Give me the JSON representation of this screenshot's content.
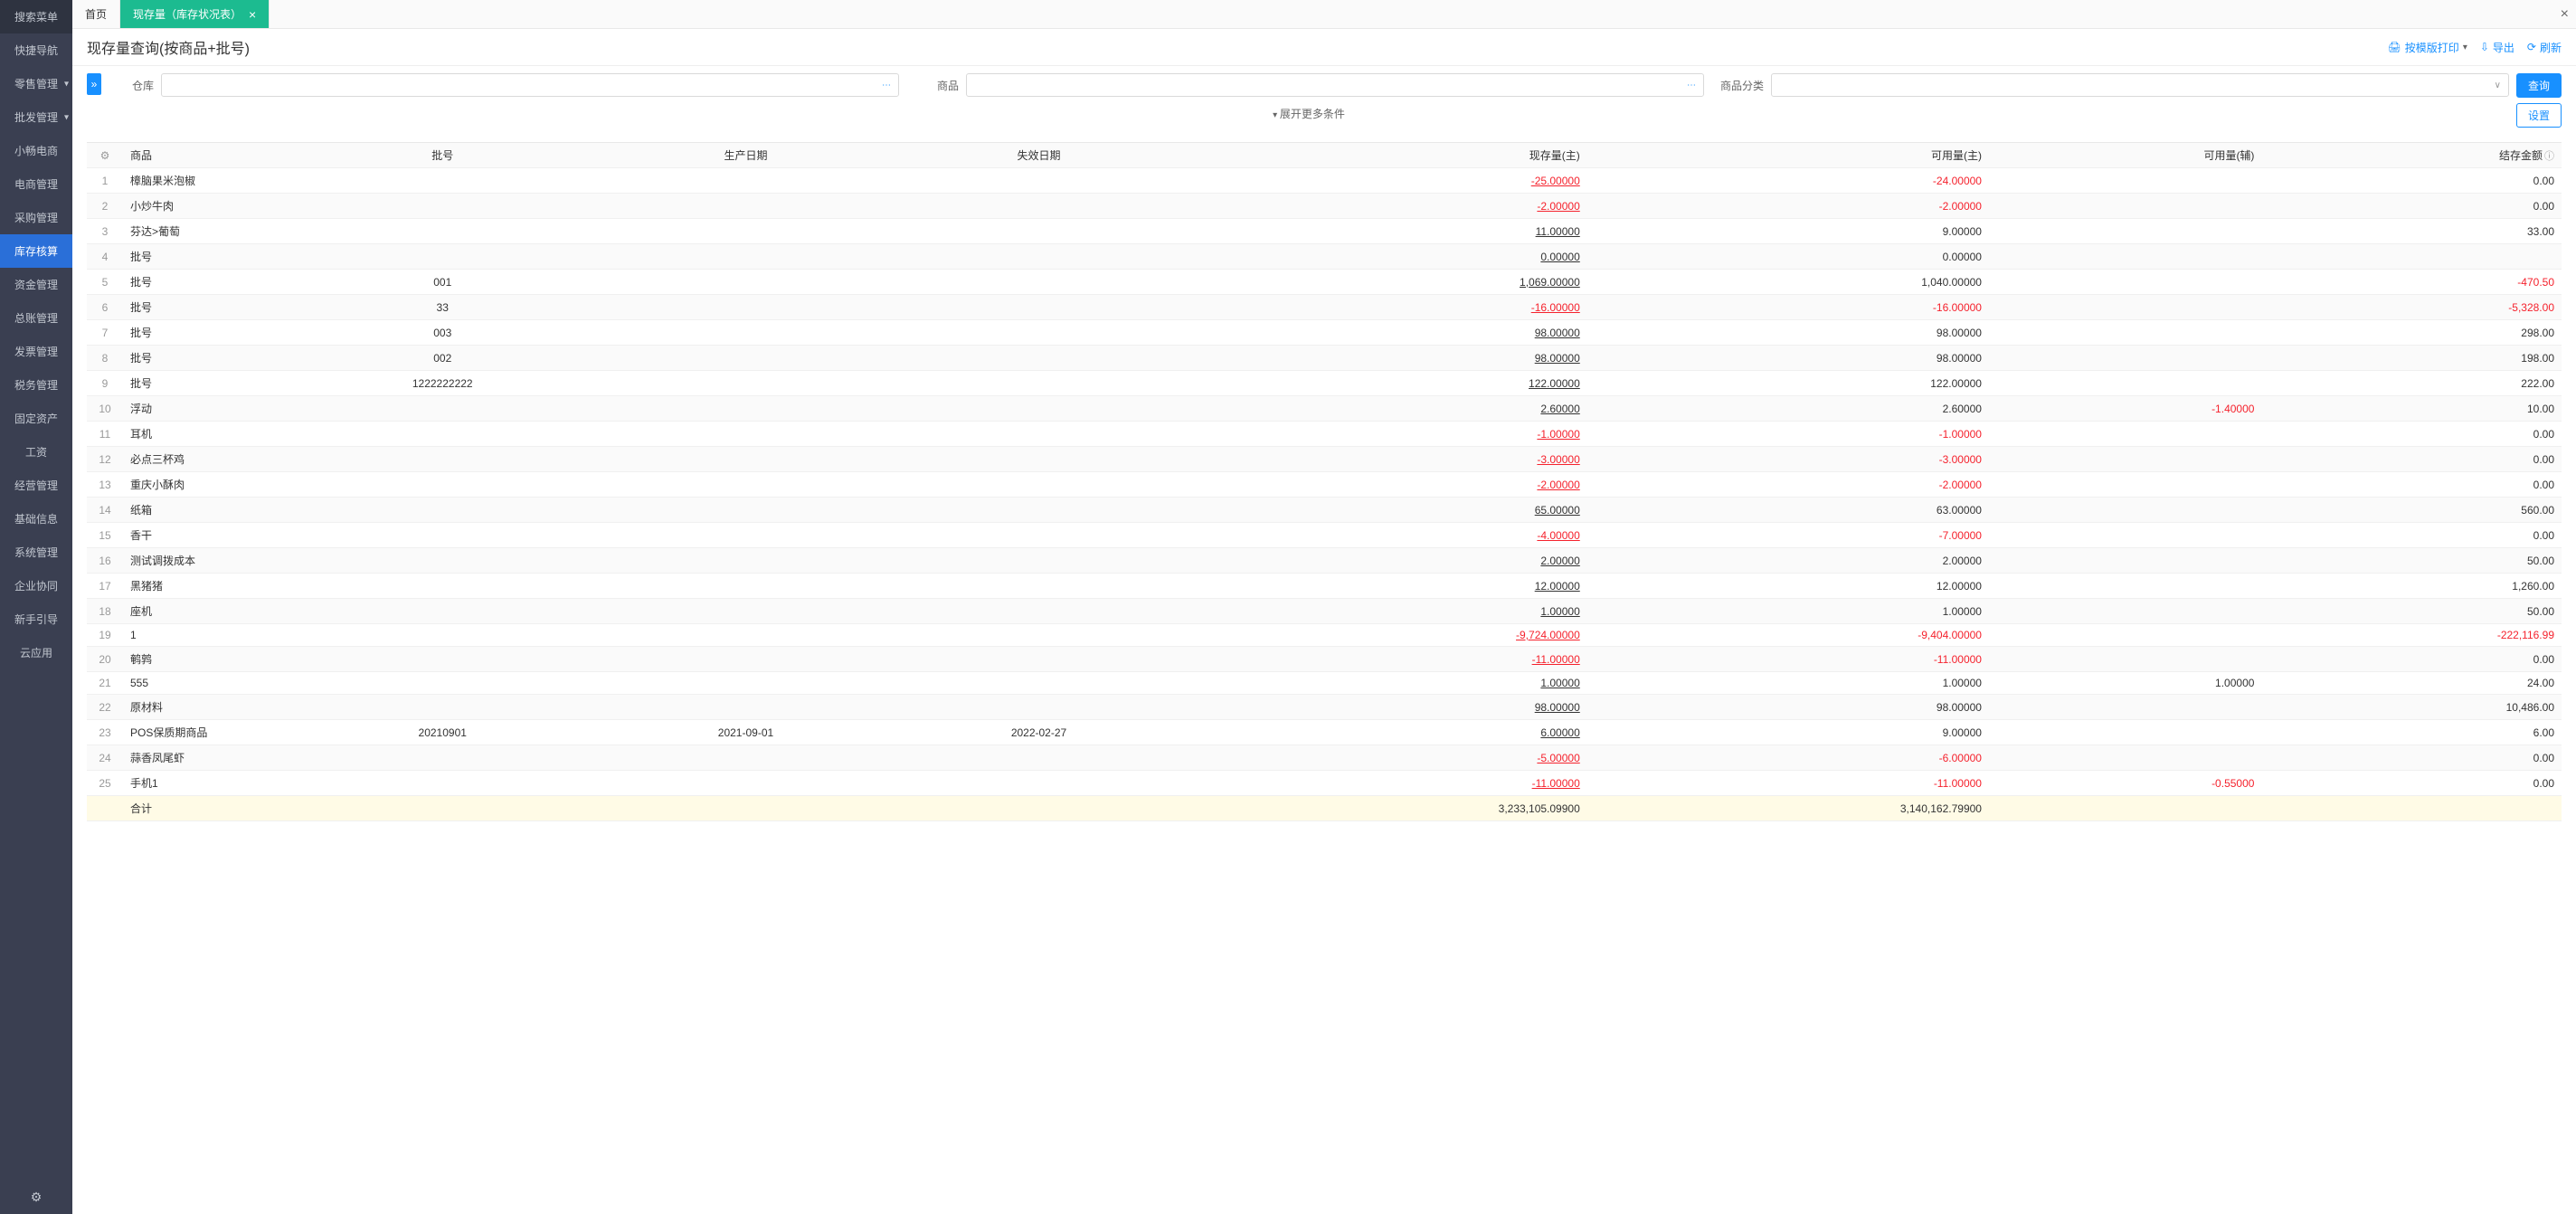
{
  "sidebar": {
    "items": [
      {
        "label": "搜索菜单",
        "arrow": false
      },
      {
        "label": "快捷导航",
        "arrow": false
      },
      {
        "label": "零售管理",
        "arrow": true,
        "expanded": true
      },
      {
        "label": "批发管理",
        "arrow": true,
        "expanded": true
      },
      {
        "label": "小畅电商",
        "arrow": false
      },
      {
        "label": "电商管理",
        "arrow": false
      },
      {
        "label": "采购管理",
        "arrow": false
      },
      {
        "label": "库存核算",
        "arrow": false,
        "active": true
      },
      {
        "label": "资金管理",
        "arrow": false
      },
      {
        "label": "总账管理",
        "arrow": false
      },
      {
        "label": "发票管理",
        "arrow": false
      },
      {
        "label": "税务管理",
        "arrow": false
      },
      {
        "label": "固定资产",
        "arrow": false
      },
      {
        "label": "工资",
        "arrow": false
      },
      {
        "label": "经营管理",
        "arrow": false
      },
      {
        "label": "基础信息",
        "arrow": false
      },
      {
        "label": "系统管理",
        "arrow": false
      },
      {
        "label": "企业协同",
        "arrow": false
      },
      {
        "label": "新手引导",
        "arrow": false
      },
      {
        "label": "云应用",
        "arrow": false
      }
    ]
  },
  "tabs": [
    {
      "label": "首页",
      "closable": false,
      "active": false
    },
    {
      "label": "现存量（库存状况表）",
      "closable": true,
      "active": true
    }
  ],
  "page": {
    "title": "现存量查询(按商品+批号)",
    "actions": {
      "print": "按模版打印",
      "export": "导出",
      "refresh": "刷新"
    }
  },
  "filters": {
    "warehouse_label": "仓库",
    "product_label": "商品",
    "category_label": "商品分类",
    "query_btn": "查询",
    "settings_btn": "设置",
    "expand": "展开更多条件"
  },
  "table": {
    "columns": [
      "#",
      "商品",
      "批号",
      "生产日期",
      "失效日期",
      "现存量(主)",
      "可用量(主)",
      "可用量(辅)",
      "结存金额"
    ],
    "rows": [
      {
        "idx": 1,
        "product": "樟脑果米泡椒",
        "batch": "",
        "prod": "",
        "exp": "",
        "stock": "-25.00000",
        "stock_neg": true,
        "avail": "-24.00000",
        "avail_neg": true,
        "aux": "",
        "amount": "0.00"
      },
      {
        "idx": 2,
        "product": "小炒牛肉",
        "batch": "",
        "prod": "",
        "exp": "",
        "stock": "-2.00000",
        "stock_neg": true,
        "avail": "-2.00000",
        "avail_neg": true,
        "aux": "",
        "amount": "0.00"
      },
      {
        "idx": 3,
        "product": "芬达>葡萄",
        "batch": "",
        "prod": "",
        "exp": "",
        "stock": "11.00000",
        "stock_neg": false,
        "avail": "9.00000",
        "avail_neg": false,
        "aux": "",
        "amount": "33.00"
      },
      {
        "idx": 4,
        "product": "批号",
        "batch": "",
        "prod": "",
        "exp": "",
        "stock": "0.00000",
        "stock_neg": false,
        "avail": "0.00000",
        "avail_neg": false,
        "aux": "",
        "amount": ""
      },
      {
        "idx": 5,
        "product": "批号",
        "batch": "001",
        "prod": "",
        "exp": "",
        "stock": "1,069.00000",
        "stock_neg": false,
        "avail": "1,040.00000",
        "avail_neg": false,
        "aux": "",
        "amount": "-470.50",
        "amount_neg": true
      },
      {
        "idx": 6,
        "product": "批号",
        "batch": "33",
        "prod": "",
        "exp": "",
        "stock": "-16.00000",
        "stock_neg": true,
        "avail": "-16.00000",
        "avail_neg": true,
        "aux": "",
        "amount": "-5,328.00",
        "amount_neg": true
      },
      {
        "idx": 7,
        "product": "批号",
        "batch": "003",
        "prod": "",
        "exp": "",
        "stock": "98.00000",
        "stock_neg": false,
        "avail": "98.00000",
        "avail_neg": false,
        "aux": "",
        "amount": "298.00"
      },
      {
        "idx": 8,
        "product": "批号",
        "batch": "002",
        "prod": "",
        "exp": "",
        "stock": "98.00000",
        "stock_neg": false,
        "avail": "98.00000",
        "avail_neg": false,
        "aux": "",
        "amount": "198.00"
      },
      {
        "idx": 9,
        "product": "批号",
        "batch": "1222222222",
        "prod": "",
        "exp": "",
        "stock": "122.00000",
        "stock_neg": false,
        "avail": "122.00000",
        "avail_neg": false,
        "aux": "",
        "amount": "222.00"
      },
      {
        "idx": 10,
        "product": "浮动",
        "batch": "",
        "prod": "",
        "exp": "",
        "stock": "2.60000",
        "stock_neg": false,
        "avail": "2.60000",
        "avail_neg": false,
        "aux": "-1.40000",
        "aux_neg": true,
        "amount": "10.00"
      },
      {
        "idx": 11,
        "product": "耳机",
        "batch": "",
        "prod": "",
        "exp": "",
        "stock": "-1.00000",
        "stock_neg": true,
        "avail": "-1.00000",
        "avail_neg": true,
        "aux": "",
        "amount": "0.00"
      },
      {
        "idx": 12,
        "product": "必点三杯鸡",
        "batch": "",
        "prod": "",
        "exp": "",
        "stock": "-3.00000",
        "stock_neg": true,
        "avail": "-3.00000",
        "avail_neg": true,
        "aux": "",
        "amount": "0.00"
      },
      {
        "idx": 13,
        "product": "重庆小酥肉",
        "batch": "",
        "prod": "",
        "exp": "",
        "stock": "-2.00000",
        "stock_neg": true,
        "avail": "-2.00000",
        "avail_neg": true,
        "aux": "",
        "amount": "0.00"
      },
      {
        "idx": 14,
        "product": "纸箱",
        "batch": "",
        "prod": "",
        "exp": "",
        "stock": "65.00000",
        "stock_neg": false,
        "avail": "63.00000",
        "avail_neg": false,
        "aux": "",
        "amount": "560.00"
      },
      {
        "idx": 15,
        "product": "香干",
        "batch": "",
        "prod": "",
        "exp": "",
        "stock": "-4.00000",
        "stock_neg": true,
        "avail": "-7.00000",
        "avail_neg": true,
        "aux": "",
        "amount": "0.00"
      },
      {
        "idx": 16,
        "product": "测试调拨成本",
        "batch": "",
        "prod": "",
        "exp": "",
        "stock": "2.00000",
        "stock_neg": false,
        "avail": "2.00000",
        "avail_neg": false,
        "aux": "",
        "amount": "50.00"
      },
      {
        "idx": 17,
        "product": "黑猪猪",
        "batch": "",
        "prod": "",
        "exp": "",
        "stock": "12.00000",
        "stock_neg": false,
        "avail": "12.00000",
        "avail_neg": false,
        "aux": "",
        "amount": "1,260.00"
      },
      {
        "idx": 18,
        "product": "座机",
        "batch": "",
        "prod": "",
        "exp": "",
        "stock": "1.00000",
        "stock_neg": false,
        "avail": "1.00000",
        "avail_neg": false,
        "aux": "",
        "amount": "50.00"
      },
      {
        "idx": 19,
        "product": "1",
        "batch": "",
        "prod": "",
        "exp": "",
        "stock": "-9,724.00000",
        "stock_neg": true,
        "avail": "-9,404.00000",
        "avail_neg": true,
        "aux": "",
        "amount": "-222,116.99",
        "amount_neg": true
      },
      {
        "idx": 20,
        "product": "鹌鹑",
        "batch": "",
        "prod": "",
        "exp": "",
        "stock": "-11.00000",
        "stock_neg": true,
        "avail": "-11.00000",
        "avail_neg": true,
        "aux": "",
        "amount": "0.00"
      },
      {
        "idx": 21,
        "product": "555",
        "batch": "",
        "prod": "",
        "exp": "",
        "stock": "1.00000",
        "stock_neg": false,
        "avail": "1.00000",
        "avail_neg": false,
        "aux": "1.00000",
        "amount": "24.00"
      },
      {
        "idx": 22,
        "product": "原材料",
        "batch": "",
        "prod": "",
        "exp": "",
        "stock": "98.00000",
        "stock_neg": false,
        "avail": "98.00000",
        "avail_neg": false,
        "aux": "",
        "amount": "10,486.00"
      },
      {
        "idx": 23,
        "product": "POS保质期商品",
        "batch": "20210901",
        "prod": "2021-09-01",
        "exp": "2022-02-27",
        "stock": "6.00000",
        "stock_neg": false,
        "avail": "9.00000",
        "avail_neg": false,
        "aux": "",
        "amount": "6.00"
      },
      {
        "idx": 24,
        "product": "蒜香凤尾虾",
        "batch": "",
        "prod": "",
        "exp": "",
        "stock": "-5.00000",
        "stock_neg": true,
        "avail": "-6.00000",
        "avail_neg": true,
        "aux": "",
        "amount": "0.00"
      },
      {
        "idx": 25,
        "product": "手机1",
        "batch": "",
        "prod": "",
        "exp": "",
        "stock": "-11.00000",
        "stock_neg": true,
        "avail": "-11.00000",
        "avail_neg": true,
        "aux": "-0.55000",
        "aux_neg": true,
        "amount": "0.00"
      }
    ],
    "total": {
      "label": "合计",
      "stock": "3,233,105.09900",
      "avail": "3,140,162.79900"
    }
  },
  "colors": {
    "sidebar_bg": "#3a3f51",
    "active_bg": "#2a6fd8",
    "tab_active": "#1cbb90",
    "primary": "#1890ff",
    "negative": "#f5222d",
    "total_bg": "#fffbe6"
  }
}
